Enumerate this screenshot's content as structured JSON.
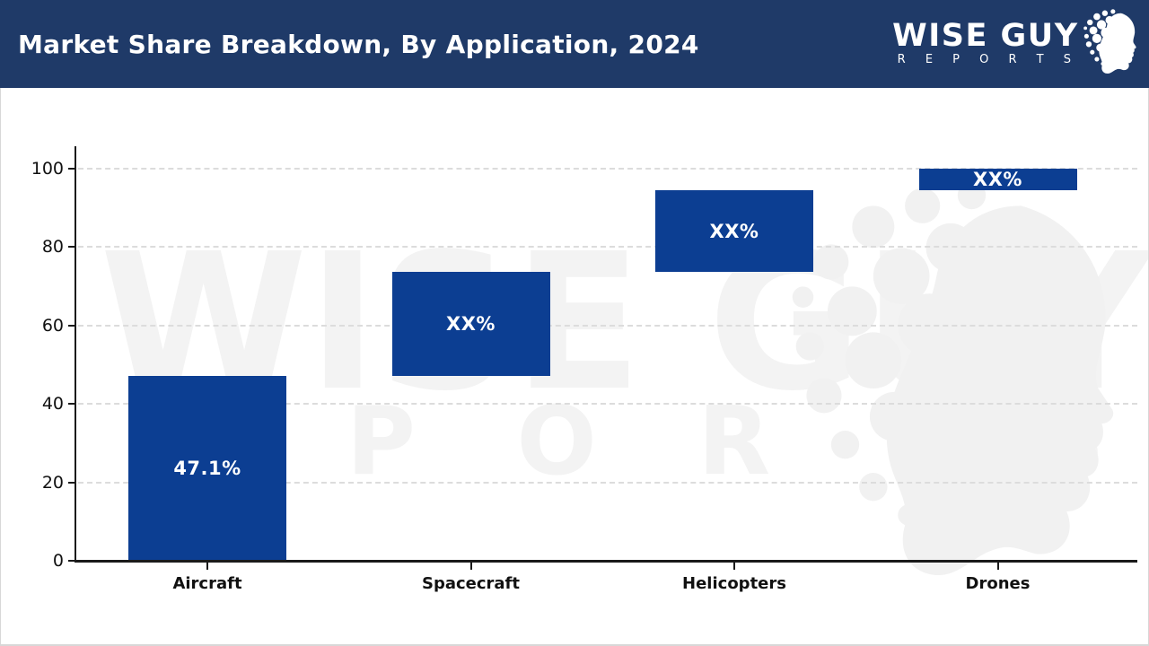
{
  "header": {
    "title": "Market Share Breakdown, By Application, 2024",
    "bg_color": "#1f3a68",
    "logo": {
      "wordmark": "WISE GUY",
      "subtitle": "R E P O R T S",
      "face_icon": "dotted-face-profile"
    }
  },
  "watermark": {
    "line1": "WISE GUY",
    "line2": "P O R T S",
    "color": "#f3f3f3"
  },
  "chart_data": {
    "type": "bar",
    "subtype": "waterfall",
    "title": "Market Share Breakdown, By Application, 2024",
    "categories": [
      "Aircraft",
      "Spacecraft",
      "Helicopters",
      "Drones"
    ],
    "segments": [
      {
        "category": "Aircraft",
        "start": 0,
        "end": 47.1,
        "label": "47.1%"
      },
      {
        "category": "Spacecraft",
        "start": 47.1,
        "end": 73.6,
        "label": "XX%"
      },
      {
        "category": "Helicopters",
        "start": 73.6,
        "end": 94.4,
        "label": "XX%"
      },
      {
        "category": "Drones",
        "start": 94.4,
        "end": 100,
        "label": "XX%"
      }
    ],
    "yticks": [
      0,
      20,
      40,
      60,
      80,
      100
    ],
    "ylim": [
      0,
      105.6
    ],
    "xlabel": "",
    "ylabel": "",
    "grid": {
      "horizontal": true,
      "style": "dashed",
      "color": "#dcdcdc"
    },
    "legend": "none",
    "bar_color": "#0c3e92",
    "axis_color": "#1a1a1a",
    "value_label_color": "#ffffff"
  }
}
